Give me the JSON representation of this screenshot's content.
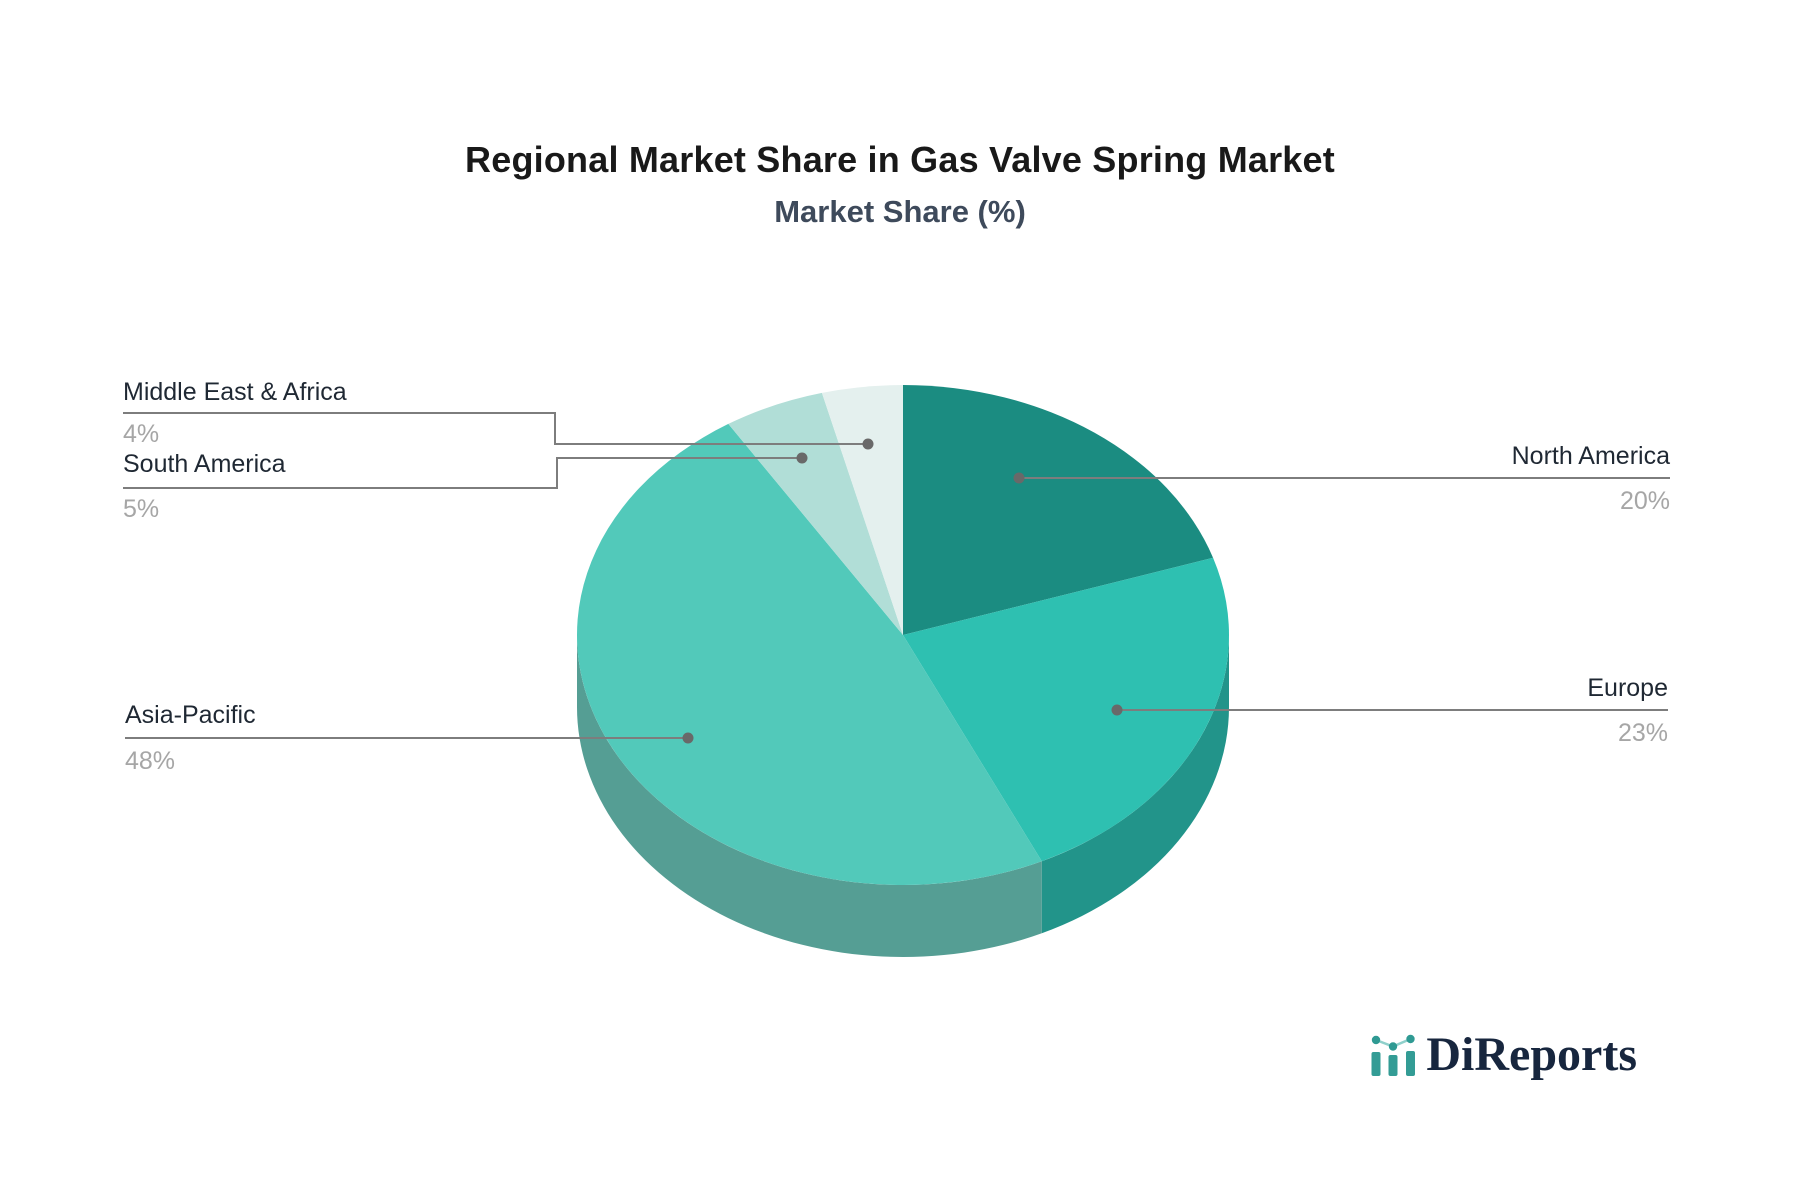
{
  "chart_data": {
    "type": "pie",
    "title": "Regional Market Share in Gas Valve Spring Market",
    "subtitle": "Market Share (%)",
    "unit": "%",
    "categories": [
      "North America",
      "Europe",
      "Asia-Pacific",
      "South America",
      "Middle East & Africa"
    ],
    "values": [
      20,
      23,
      48,
      5,
      4
    ],
    "value_labels": [
      "20%",
      "23%",
      "48%",
      "5%",
      "4%"
    ],
    "colors": [
      "#1b8c81",
      "#2ec0b1",
      "#52c9ba",
      "#b1ded7",
      "#e4f0ee"
    ],
    "side_colors": [
      "#15776e",
      "#22948a",
      "#559e94",
      "#96c6bf",
      "#c8dcd8"
    ],
    "start_angle_deg": 0,
    "direction": "clockwise",
    "effect_3d": true,
    "legend_position": "none",
    "label_style": "external-callouts-with-leader-lines",
    "style": {
      "category_label_color": "#1f2833",
      "percent_label_color": "#a6a6a6",
      "leader_line_color": "#7d7d7d",
      "leader_dot_color": "#696969",
      "title_color": "#191919",
      "subtitle_color": "#3e4a5b",
      "background": "#ffffff"
    }
  },
  "branding": {
    "logo_text": "DiReports",
    "logo_icon": "bar-chart-icon",
    "logo_text_color": "#17263e",
    "logo_icon_color": "#339c95"
  }
}
